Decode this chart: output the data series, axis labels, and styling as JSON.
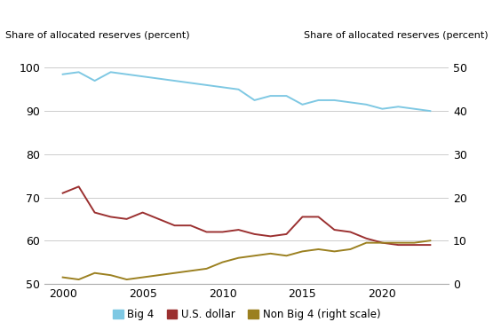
{
  "years": [
    2000,
    2001,
    2002,
    2003,
    2004,
    2005,
    2006,
    2007,
    2008,
    2009,
    2010,
    2011,
    2012,
    2013,
    2014,
    2015,
    2016,
    2017,
    2018,
    2019,
    2020,
    2021,
    2022,
    2023
  ],
  "big4": [
    98.5,
    99.0,
    97.0,
    99.0,
    98.5,
    98.0,
    97.5,
    97.0,
    96.5,
    96.0,
    95.5,
    95.0,
    92.5,
    93.5,
    93.5,
    91.5,
    92.5,
    92.5,
    92.0,
    91.5,
    90.5,
    91.0,
    90.5,
    90.0
  ],
  "usd": [
    71.0,
    72.5,
    66.5,
    65.5,
    65.0,
    66.5,
    65.0,
    63.5,
    63.5,
    62.0,
    62.0,
    62.5,
    61.5,
    61.0,
    61.5,
    65.5,
    65.5,
    62.5,
    62.0,
    60.5,
    59.5,
    59.0,
    59.0,
    59.0
  ],
  "non_big4_right": [
    1.5,
    1.0,
    2.5,
    2.0,
    1.0,
    1.5,
    2.0,
    2.5,
    3.0,
    3.5,
    5.0,
    6.0,
    6.5,
    7.0,
    6.5,
    7.5,
    8.0,
    7.5,
    8.0,
    9.5,
    9.5,
    9.5,
    9.5,
    10.0
  ],
  "big4_color": "#7ec8e3",
  "usd_color": "#9b3030",
  "non_big4_color": "#9b8020",
  "left_ylabel": "Share of allocated reserves (percent)",
  "right_ylabel": "Share of allocated reserves (percent)",
  "left_ylim": [
    50,
    105
  ],
  "right_ylim": [
    0,
    55
  ],
  "left_yticks": [
    50,
    60,
    70,
    80,
    90,
    100
  ],
  "right_yticks": [
    0,
    10,
    20,
    30,
    40,
    50
  ],
  "xticks": [
    2000,
    2005,
    2010,
    2015,
    2020
  ],
  "bg_color": "#ffffff",
  "grid_color": "#cccccc",
  "legend_labels": [
    "Big 4",
    "U.S. dollar",
    "Non Big 4 (right scale)"
  ]
}
